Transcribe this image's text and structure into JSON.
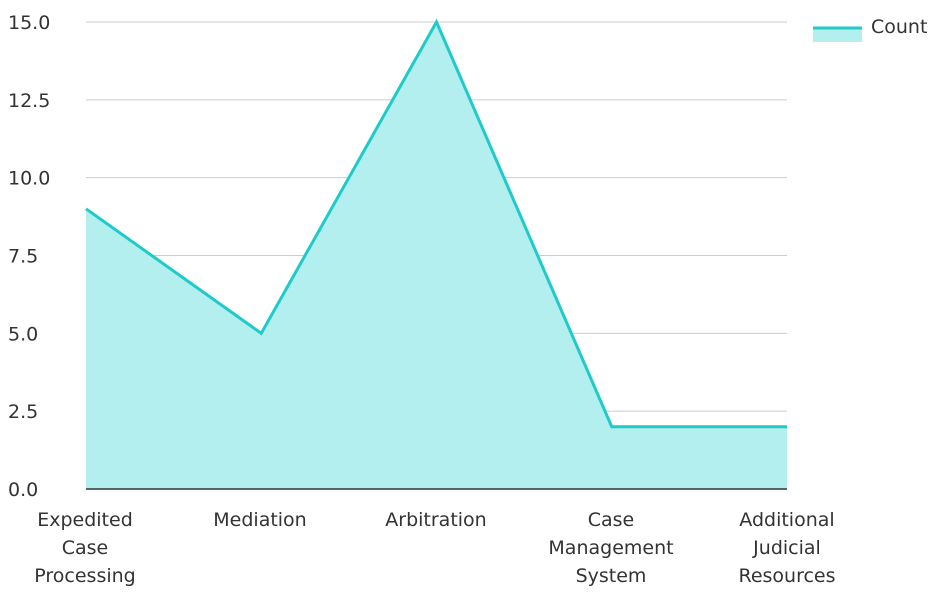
{
  "chart_data": {
    "type": "area",
    "categories": [
      [
        "Expedited",
        "Case",
        "Processing"
      ],
      [
        "Mediation"
      ],
      [
        "Arbitration"
      ],
      [
        "Case",
        "Management",
        "System"
      ],
      [
        "Additional",
        "Judicial",
        "Resources"
      ]
    ],
    "series": [
      {
        "name": "Count",
        "values": [
          9,
          5,
          15,
          2,
          2
        ]
      }
    ],
    "ylim": [
      0,
      15
    ],
    "yticks": [
      "0.0",
      "2.5",
      "5.0",
      "7.5",
      "10.0",
      "12.5",
      "15.0"
    ],
    "grid": true,
    "legend": "top-right",
    "colors": {
      "line": "#1ecbc8",
      "fill": "#b2efee",
      "grid": "#cccccc",
      "axis": "#333333"
    }
  }
}
